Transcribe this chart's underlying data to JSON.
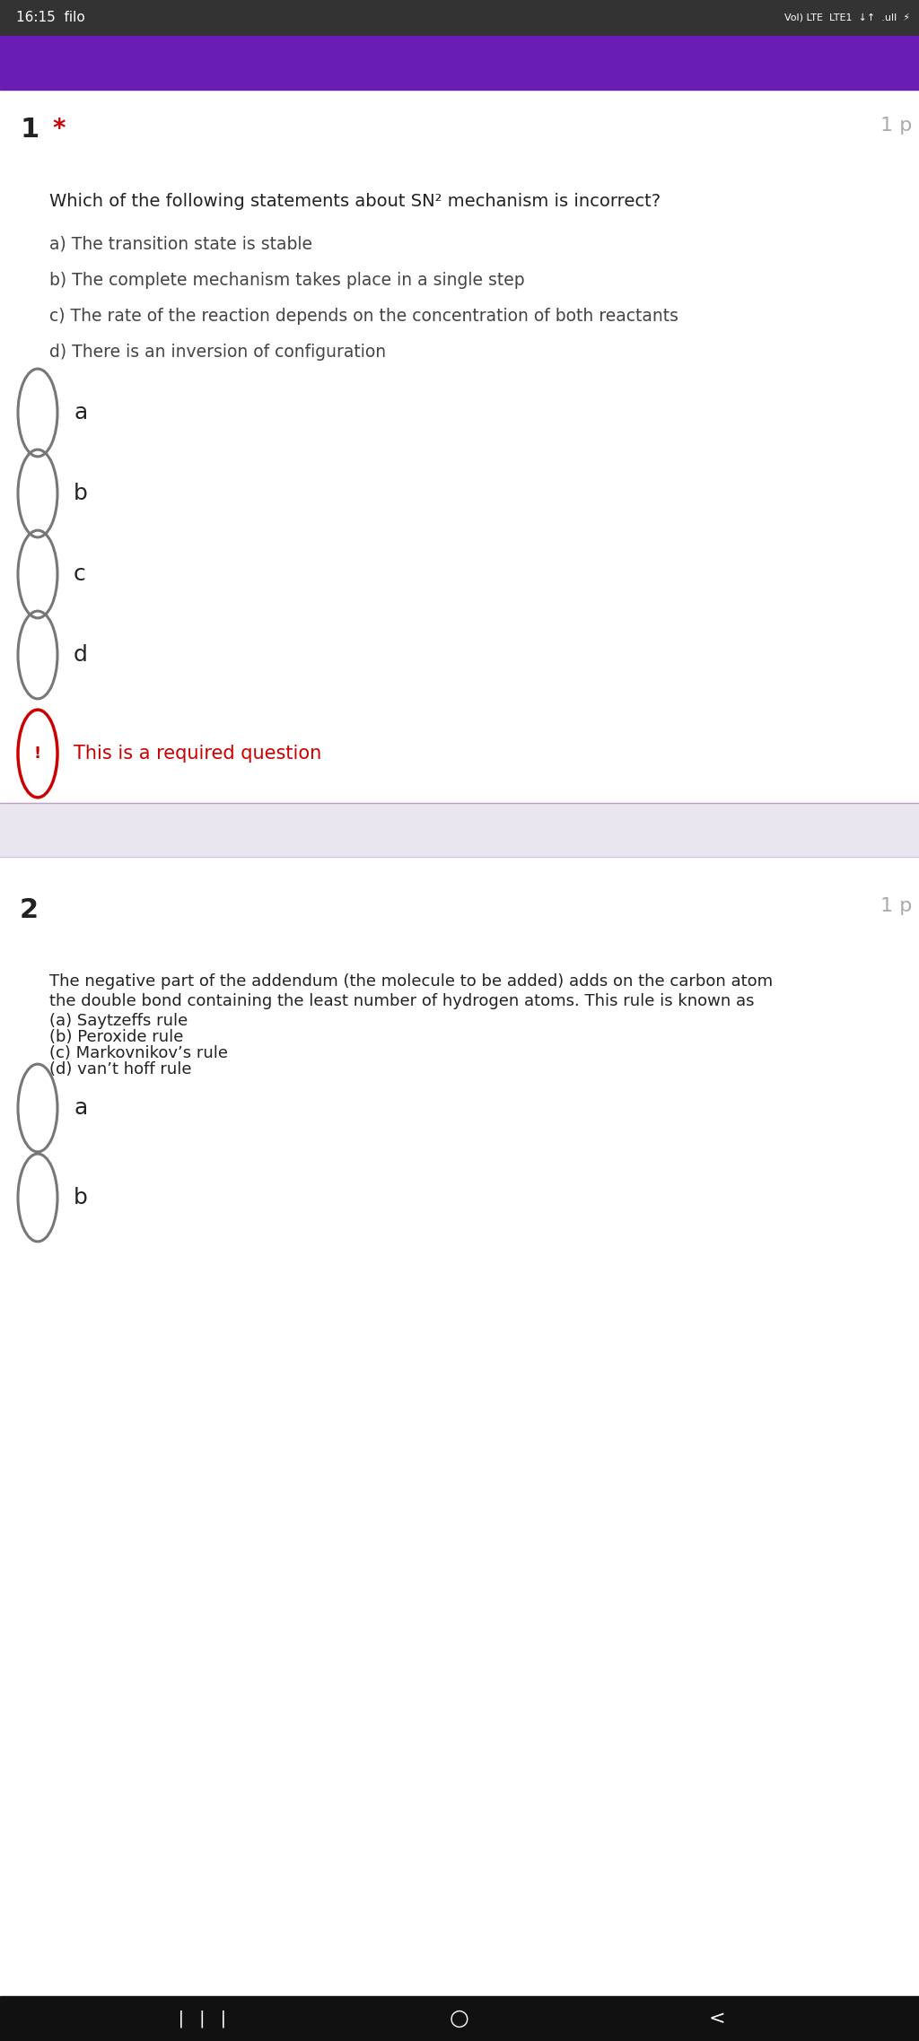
{
  "status_bar_bg": "#333333",
  "purple_bar_bg": "#6a1db5",
  "page_bg": "#ffffff",
  "q1_star_color": "#cc0000",
  "required_color": "#cc0000",
  "divider_bg": "#eae6f0",
  "divider_line_color": "#c8b8d8",
  "text_color": "#222222",
  "option_text_color": "#444444",
  "radio_circle_color": "#777777",
  "nav_bar_bg": "#111111",
  "q1_options": [
    "a) The transition state is stable",
    "b) The complete mechanism takes place in a single step",
    "c) The rate of the reaction depends on the concentration of both reactants",
    "d) There is an inversion of configuration"
  ],
  "q1_radio_labels": [
    "a",
    "b",
    "c",
    "d"
  ],
  "q2_lines": [
    "The negative part of the addendum (the molecule to be added) adds on the carbon atom",
    "the double bond containing the least number of hydrogen atoms. This rule is known as",
    "(a) Saytzeffs rule",
    "(b) Peroxide rule",
    "(c) Markovnikov’s rule",
    "(d) van’t hoff rule"
  ],
  "q2_radio_labels": [
    "a",
    "b"
  ]
}
